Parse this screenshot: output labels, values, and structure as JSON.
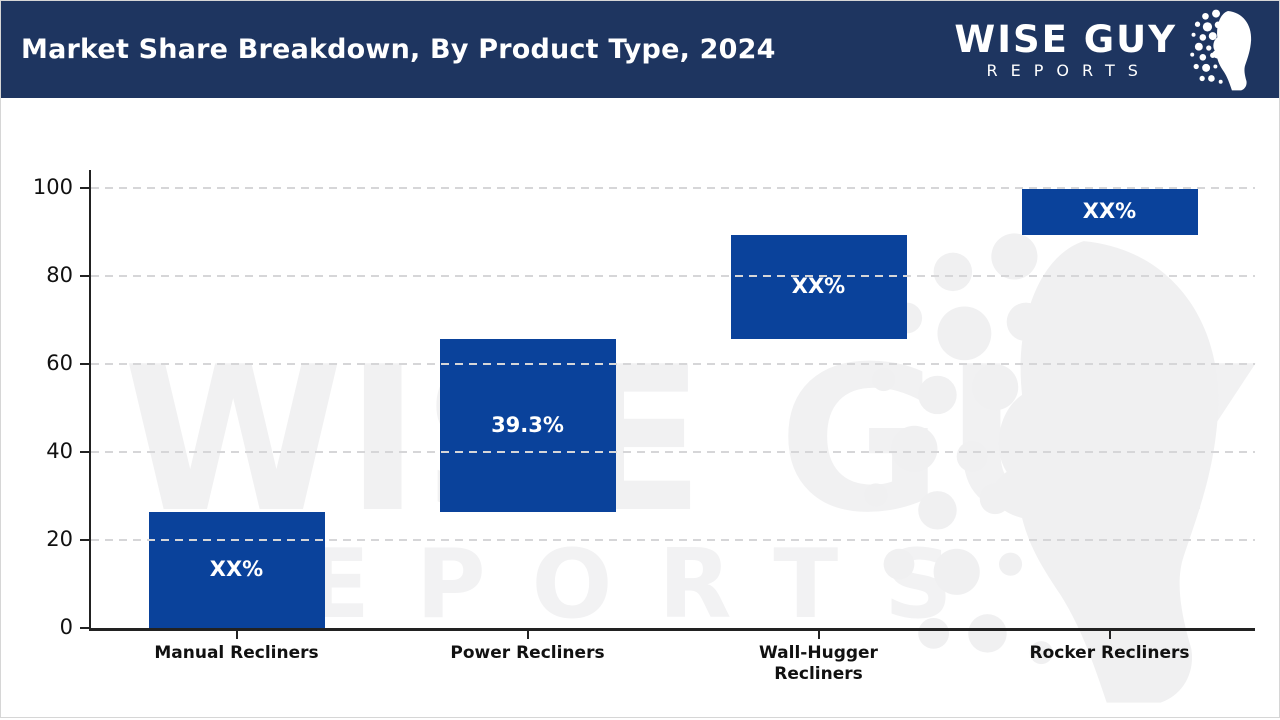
{
  "header": {
    "title": "Market Share Breakdown, By Product Type, 2024",
    "background_color": "#1e3560",
    "logo": {
      "line1": "WISE GUY",
      "line2": "REPORTS"
    }
  },
  "watermark": {
    "line1": "WISE GUY",
    "line2": "REPORTS"
  },
  "chart_data": {
    "type": "bar",
    "subtype": "floating-segment-waterfall",
    "title": "Market Share Breakdown, By Product Type, 2024",
    "categories": [
      "Manual Recliners",
      "Power Recliners",
      "Wall-Hugger Recliners",
      "Rocker Recliners"
    ],
    "segments": [
      {
        "category": "Manual Recliners",
        "start": 0,
        "end": 26.3,
        "label": "XX%"
      },
      {
        "category": "Power Recliners",
        "start": 26.3,
        "end": 65.6,
        "label": "39.3%"
      },
      {
        "category": "Wall-Hugger Recliners",
        "start": 65.6,
        "end": 89.3,
        "label": "XX%"
      },
      {
        "category": "Rocker Recliners",
        "start": 89.3,
        "end": 99.8,
        "label": "XX%"
      }
    ],
    "bar_color": "#0a429b",
    "bar_label_color": "#ffffff",
    "xlabel": "",
    "ylabel": "",
    "ylim": [
      0,
      104
    ],
    "yticks": [
      0,
      20,
      40,
      60,
      80,
      100
    ],
    "grid": "dashed-horizontal",
    "gridline_color": "#d6d6d8",
    "legend": "none"
  }
}
